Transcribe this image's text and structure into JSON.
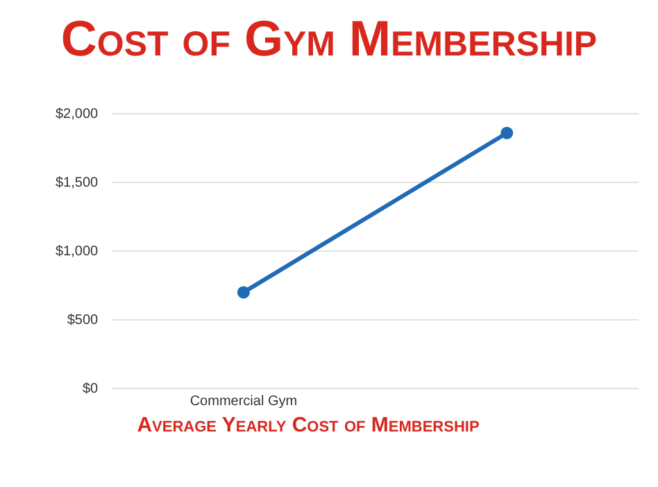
{
  "chart_data": {
    "type": "line",
    "title": "Cost of Gym Membership",
    "xlabel": "Average Yearly Cost of Membership",
    "categories": [
      "Commercial Gym",
      null
    ],
    "series": [
      {
        "color": "#1f6bb5",
        "values": [
          700,
          1860
        ]
      }
    ],
    "ylim": [
      0,
      2000
    ],
    "yticks": [
      {
        "value": 0,
        "label": "$0"
      },
      {
        "value": 500,
        "label": "$500"
      },
      {
        "value": 1000,
        "label": "$1,000"
      },
      {
        "value": 1500,
        "label": "$1,500"
      },
      {
        "value": 2000,
        "label": "$2,000"
      }
    ],
    "grid": "y",
    "legend": false,
    "marker": "circle",
    "line_style": "solid"
  }
}
